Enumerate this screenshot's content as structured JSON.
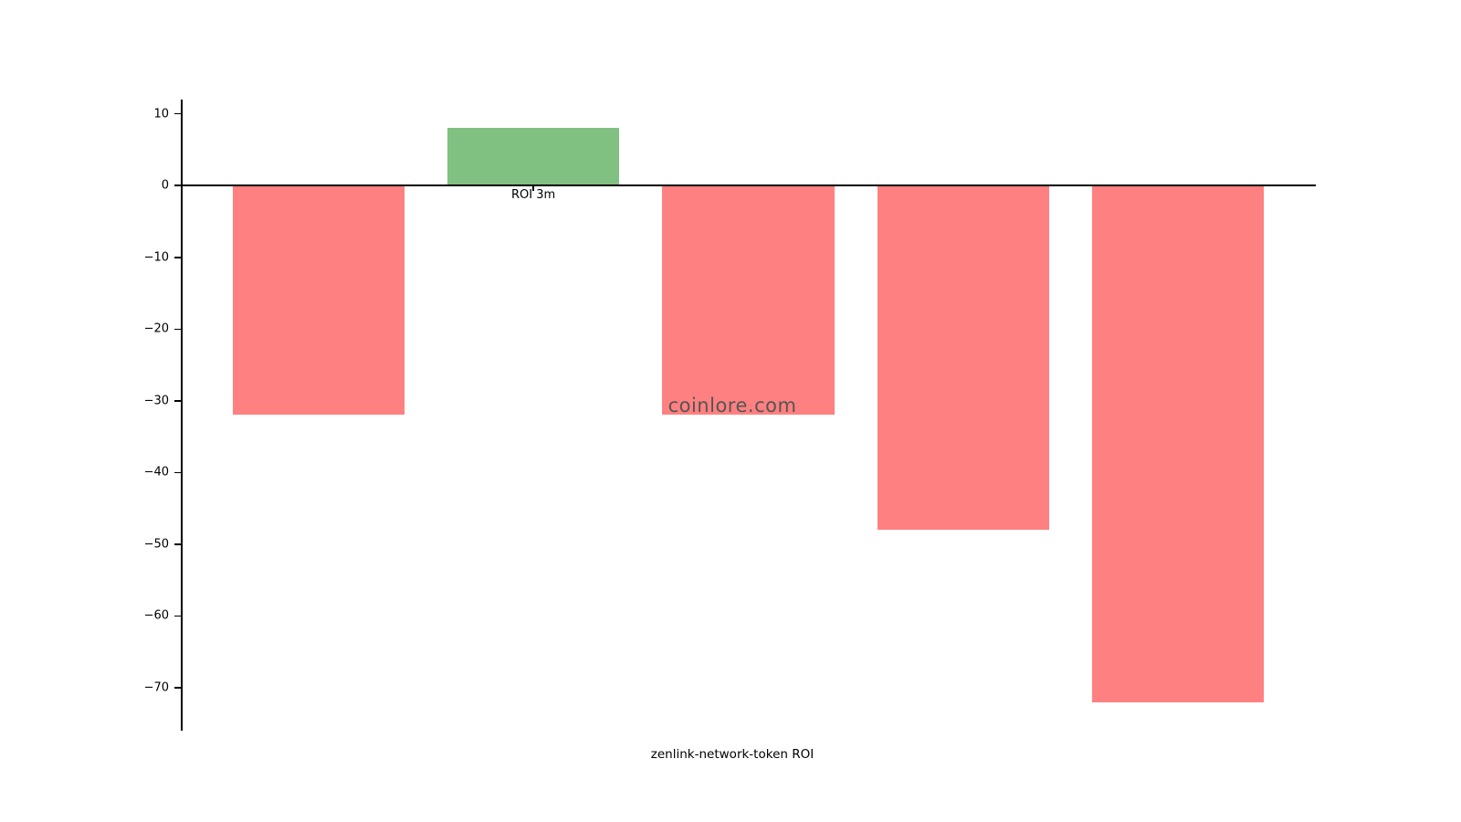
{
  "chart_data": {
    "type": "bar",
    "title": "zenlink-network-token ROI",
    "watermark": "coinlore.com",
    "categories": [
      "",
      "ROI 3m",
      "",
      "",
      ""
    ],
    "values": [
      -32,
      8,
      -32,
      -48,
      -72
    ],
    "series": [
      {
        "name": "ROI",
        "values": [
          -32,
          8,
          -32,
          -48,
          -72
        ]
      }
    ],
    "ylim": [
      -76,
      12
    ],
    "yticks": [
      10,
      0,
      -10,
      -20,
      -30,
      -40,
      -50,
      -60,
      -70
    ],
    "ytick_labels": [
      "10",
      "0",
      "−10",
      "−20",
      "−30",
      "−40",
      "−50",
      "−60",
      "−70"
    ],
    "xlim": [
      -0.64,
      4.64
    ],
    "bar_width_fraction": 0.8,
    "grid": false,
    "legend_position": "none",
    "positive_color": "#80c080",
    "negative_color": "#ff8080",
    "axis_color": "#000000",
    "text_color": "#000000",
    "watermark_color": "#555555",
    "background_color": "#ffffff"
  }
}
